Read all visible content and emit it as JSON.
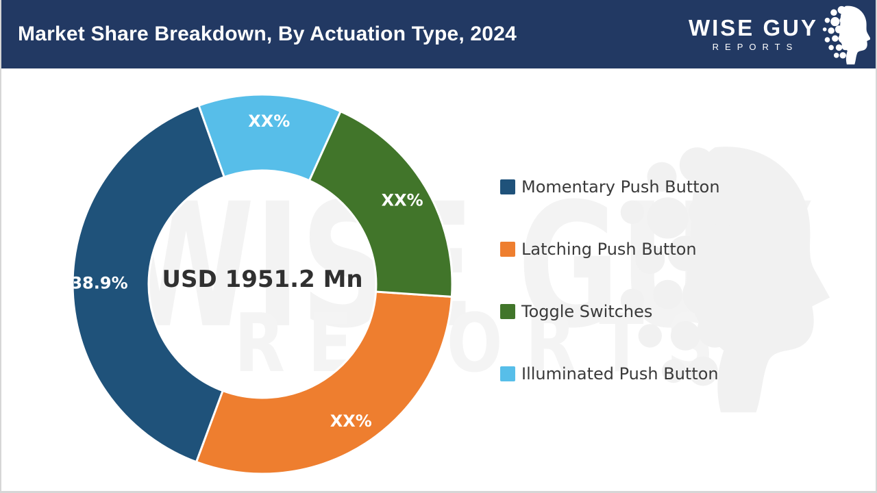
{
  "header": {
    "title": "Market Share Breakdown, By Actuation Type, 2024",
    "logo": {
      "line1": "WISE GUY",
      "line2": "REPORTS"
    }
  },
  "watermark": {
    "line1": "WISE GUY",
    "line2": "R E P O R T S"
  },
  "chart_data": {
    "type": "pie",
    "subtype": "donut",
    "title": "Market Share Breakdown, By Actuation Type, 2024",
    "center_label": "USD 1951.2 Mn",
    "categories": [
      "Momentary Push Button",
      "Latching Push Button",
      "Toggle Switches",
      "Illuminated Push Button"
    ],
    "values": [
      38.9,
      29.6,
      19.3,
      12.2
    ],
    "slice_labels": [
      "38.9%",
      "XX%",
      "XX%",
      "XX%"
    ],
    "colors": [
      "#1f527a",
      "#ee7e2f",
      "#41752a",
      "#57bee9"
    ],
    "start_angle_deg": 109.6,
    "direction": "counterclockwise",
    "inner_radius_ratio": 0.6,
    "legend_position": "right"
  },
  "legend": {
    "items": [
      {
        "label": "Momentary Push Button",
        "color": "#1f527a"
      },
      {
        "label": "Latching Push Button",
        "color": "#ee7e2f"
      },
      {
        "label": "Toggle Switches",
        "color": "#41752a"
      },
      {
        "label": "Illuminated Push Button",
        "color": "#57bee9"
      }
    ]
  }
}
